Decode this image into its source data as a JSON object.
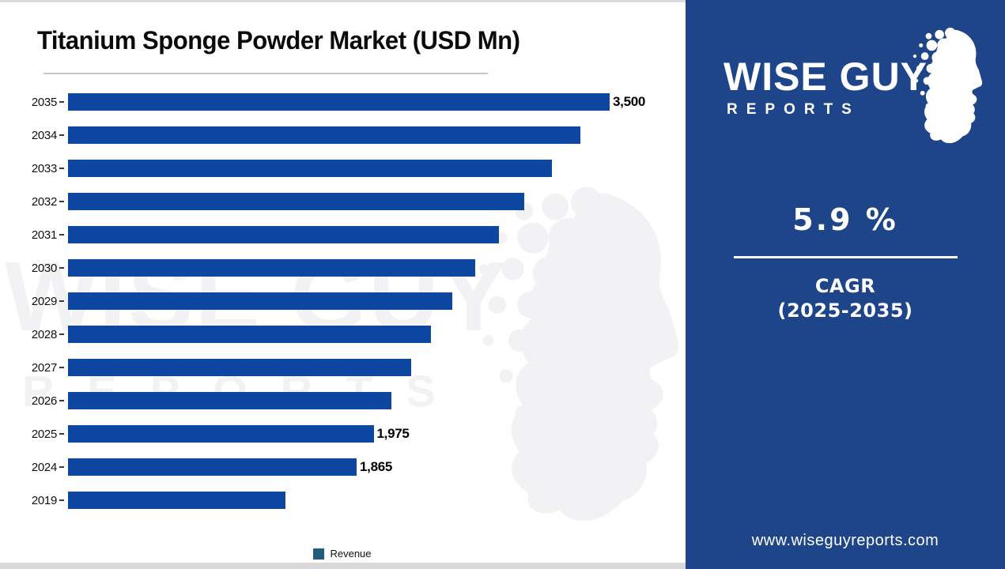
{
  "title": "Titanium Sponge Powder Market (USD Mn)",
  "chart_data": {
    "type": "bar",
    "orientation": "horizontal",
    "title": "Titanium Sponge Powder Market (USD Mn)",
    "value_unit": "USD Mn",
    "categories": [
      "2035",
      "2034",
      "2033",
      "2032",
      "2031",
      "2030",
      "2029",
      "2028",
      "2027",
      "2026",
      "2025",
      "2024",
      "2019"
    ],
    "values": [
      3500,
      3310,
      3125,
      2950,
      2785,
      2630,
      2485,
      2345,
      2215,
      2090,
      1975,
      1865,
      1405
    ],
    "data_labels": [
      "3,500",
      "",
      "",
      "",
      "",
      "",
      "",
      "",
      "",
      "",
      "1,975",
      "1,865",
      ""
    ],
    "xlim": [
      0,
      3500
    ],
    "grid": false,
    "bar_color": "#0D47A1",
    "legend": {
      "position": "bottom",
      "entries": [
        {
          "label": "Revenue",
          "color": "#215E7E"
        }
      ]
    }
  },
  "panel": {
    "logo_line1": "WISE GUY",
    "logo_line2": "REPORTS",
    "cagr_value": "5.9 %",
    "cagr_line1": "CAGR",
    "cagr_line2": "(2025-2035)",
    "website": "www.wiseguyreports.com"
  },
  "watermark": {
    "line1": "WISE GUY",
    "line2": "REPORTS"
  },
  "colors": {
    "bar": "#0D47A1",
    "panel_bg": "#1E4489",
    "legend_marker": "#215E7E",
    "watermark": "#F2F2F5",
    "title_text": "#0B0B0B",
    "panel_text": "#FFFFFF"
  }
}
